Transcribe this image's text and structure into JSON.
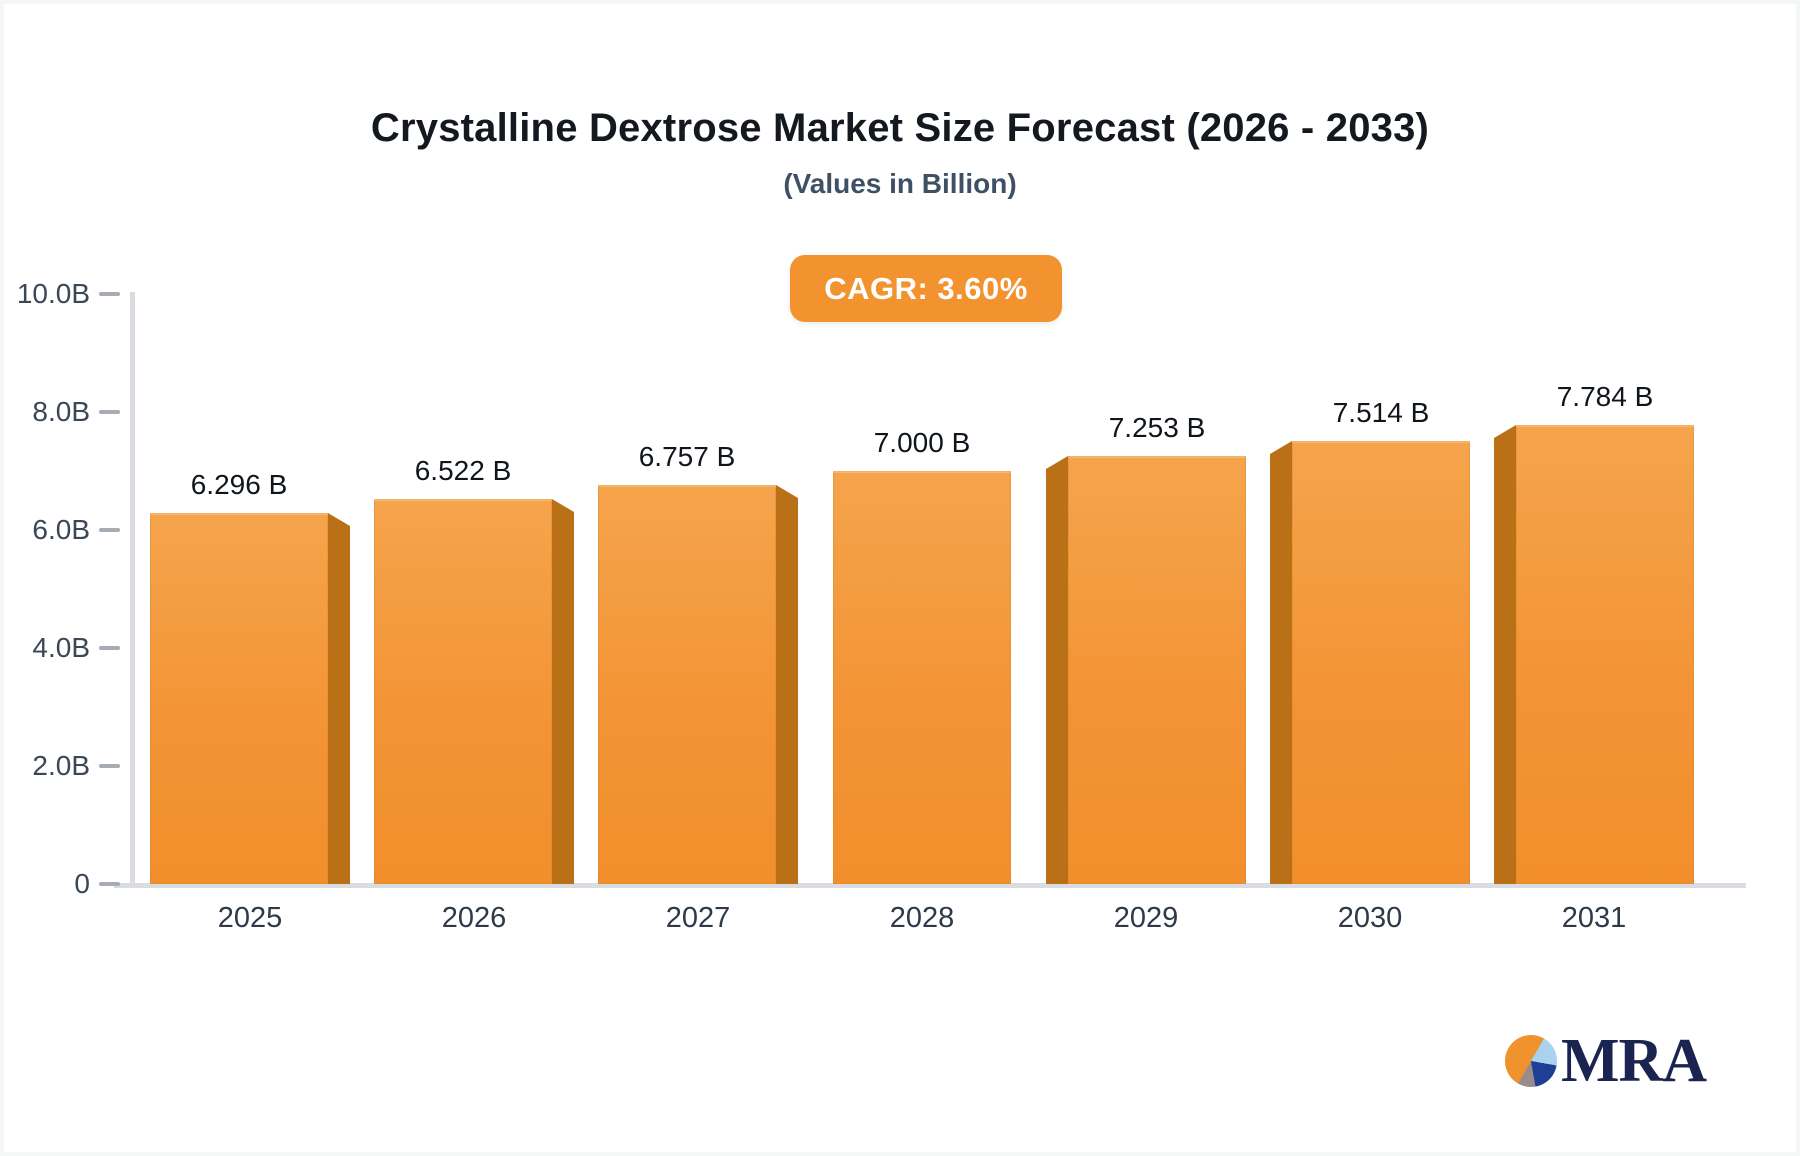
{
  "title": "Crystalline Dextrose Market Size Forecast (2026 - 2033)",
  "subtitle": "(Values in Billion)",
  "badge": {
    "label": "CAGR: 3.60%"
  },
  "logo": {
    "text": "MRA",
    "icon": "pie-chart-icon"
  },
  "colors": {
    "bar_front": "#f49738",
    "bar_side": "#b97017",
    "badge_bg": "#f2932f",
    "title_text": "#14181f",
    "subtitle_text": "#3f5065",
    "axis_line": "#d9dde2",
    "tick_dash": "#a6acb3",
    "y_label": "#3b4757",
    "x_label": "#2e3a4a",
    "value_label": "#10151c",
    "logo_navy": "#1b2450",
    "logo_orange": "#f0922d",
    "logo_lightblue": "#a8d2ee",
    "logo_blue": "#1f3f96",
    "logo_gray": "#9b8c8c"
  },
  "chart_data": {
    "type": "bar",
    "title": "Crystalline Dextrose Market Size Forecast (2026 - 2033)",
    "subtitle": "(Values in Billion)",
    "cagr_label": "CAGR: 3.60%",
    "categories": [
      "2025",
      "2026",
      "2027",
      "2028",
      "2029",
      "2030",
      "2031"
    ],
    "values": [
      6.296,
      6.522,
      6.757,
      7.0,
      7.253,
      7.514,
      7.784
    ],
    "value_labels": [
      "6.296 B",
      "6.522 B",
      "6.757 B",
      "7.000 B",
      "7.253 B",
      "7.514 B",
      "7.784 B"
    ],
    "xlabel": "",
    "ylabel": "",
    "ylim": [
      0,
      10
    ],
    "yticks": [
      {
        "value": 10,
        "label": "10.0B"
      },
      {
        "value": 8,
        "label": "8.0B"
      },
      {
        "value": 6,
        "label": "6.0B"
      },
      {
        "value": 4,
        "label": "4.0B"
      },
      {
        "value": 2,
        "label": "2.0B"
      },
      {
        "value": 0,
        "label": "0"
      }
    ],
    "grid": false,
    "legend": false,
    "bar_style": "3d-perspective",
    "bar_color": "#f49738"
  }
}
